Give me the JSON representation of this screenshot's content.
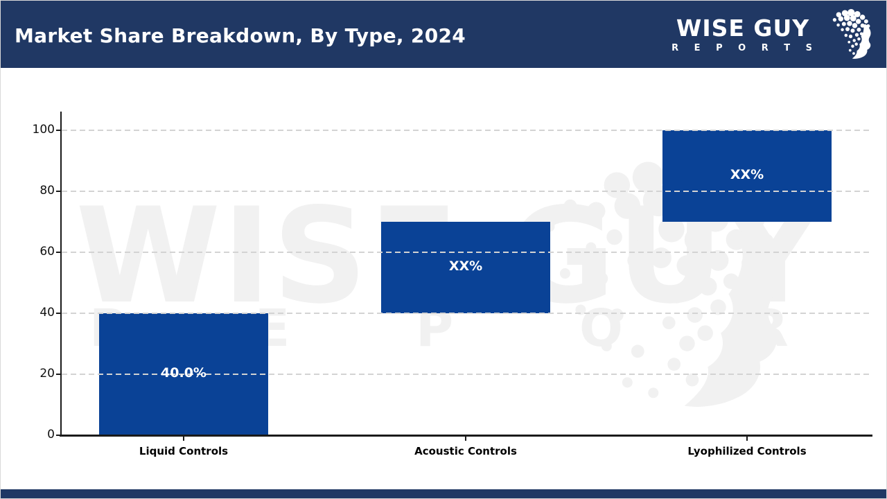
{
  "header": {
    "title": "Market Share Breakdown, By Type, 2024",
    "logo_line1": "WISE GUY",
    "logo_line2": "R E P O R T S",
    "bg_color": "#203864"
  },
  "watermark": {
    "line1": "WISE GUY",
    "line2": "R E P O R T S",
    "color": "#f1f1f1"
  },
  "chart_data": {
    "type": "bar",
    "variant": "floating-waterfall",
    "title": "Market Share Breakdown, By Type, 2024",
    "categories": [
      "Liquid Controls",
      "Acoustic Controls",
      "Lyophilized Controls"
    ],
    "bars": [
      {
        "category": "Liquid Controls",
        "start": 0,
        "end": 40,
        "label": "40.0%"
      },
      {
        "category": "Acoustic Controls",
        "start": 40,
        "end": 70,
        "label": "XX%"
      },
      {
        "category": "Lyophilized Controls",
        "start": 70,
        "end": 100,
        "label": "XX%"
      }
    ],
    "y_ticks": [
      0,
      20,
      40,
      60,
      80,
      100
    ],
    "ylim": [
      0,
      105
    ],
    "xlabel": "",
    "ylabel": "",
    "bar_color": "#0a4296",
    "bar_label_color": "#ffffff",
    "grid": "horizontal-dashed",
    "gridline_color": "#d3d3d3",
    "legend": "none"
  },
  "colors": {
    "header_bg": "#203864",
    "footer_bg": "#203864",
    "bar_blue": "#0a4296",
    "axis_dark": "#1a1a1a",
    "watermark_gray": "#f1f1f1",
    "border_gray": "#d9d9d9"
  }
}
